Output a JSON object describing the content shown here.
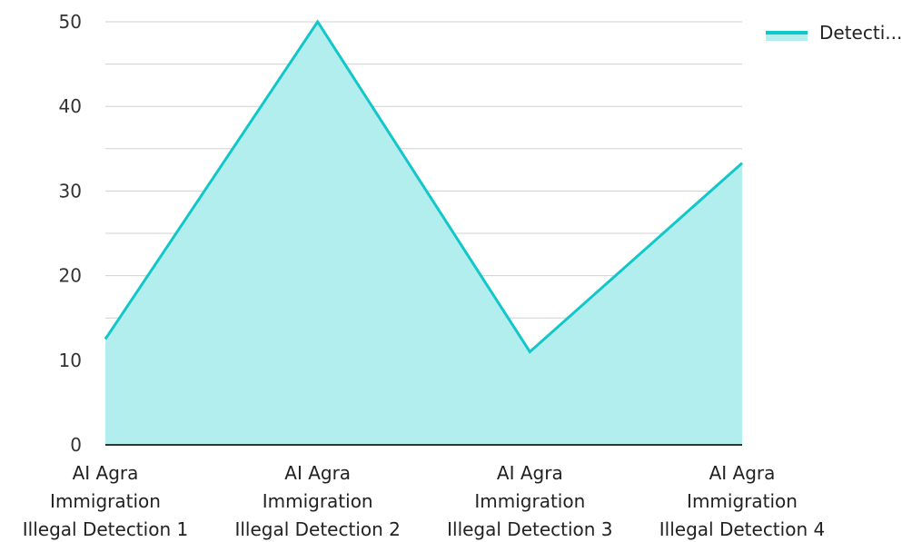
{
  "chart_data": {
    "type": "area",
    "categories": [
      [
        "AI Agra",
        "Immigration",
        "Illegal Detection 1"
      ],
      [
        "AI Agra",
        "Immigration",
        "Illegal Detection 2"
      ],
      [
        "AI Agra",
        "Immigration",
        "Illegal Detection 3"
      ],
      [
        "AI Agra",
        "Immigration",
        "Illegal Detection 4"
      ]
    ],
    "series": [
      {
        "name": "Detecti...",
        "values": [
          12.5,
          50,
          11,
          33.3
        ]
      }
    ],
    "yticks": [
      "0",
      "10",
      "20",
      "30",
      "40",
      "50"
    ],
    "ylim": [
      0,
      50
    ],
    "grid": true,
    "legend": "top-right",
    "colors": {
      "line": "#12c6c9",
      "fill": "#b2eeee",
      "grid": "#d0d0d0",
      "axis": "#333333"
    }
  }
}
